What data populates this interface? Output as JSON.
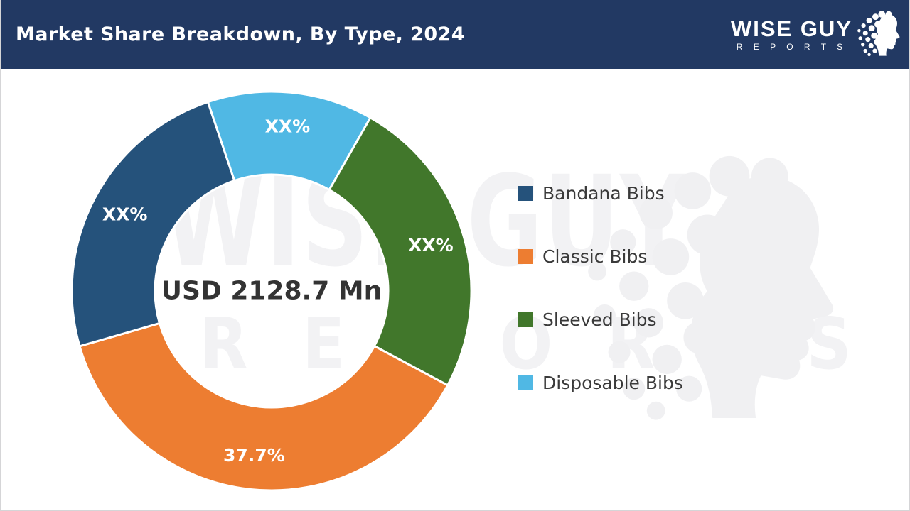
{
  "header": {
    "title": "Market Share Breakdown, By Type, 2024",
    "logo": {
      "line1": "WISE GUY",
      "line2": "R E P O R T S"
    }
  },
  "watermark": {
    "line1": "WISE GUY",
    "line2": "R E P O R T S"
  },
  "colors": {
    "header_bg": "#223963",
    "legend_text": "#3a3a3a",
    "center_text": "#333333",
    "watermark": "#f2f2f4"
  },
  "chart_data": {
    "type": "donut",
    "title": "Market Share Breakdown, By Type, 2024",
    "center_label": "USD 2128.7 Mn",
    "legend_position": "right",
    "start_angle_deg": -18.6,
    "segments": [
      {
        "label": "Bandana Bibs",
        "display_value": "XX%",
        "percent_est": 24.3,
        "color": "#25527B"
      },
      {
        "label": "Classic Bibs",
        "display_value": "37.7%",
        "percent_est": 37.7,
        "color": "#ED7D31"
      },
      {
        "label": "Sleeved Bibs",
        "display_value": "XX%",
        "percent_est": 24.6,
        "color": "#41772B"
      },
      {
        "label": "Disposable Bibs",
        "display_value": "XX%",
        "percent_est": 13.4,
        "color": "#50B8E4"
      }
    ]
  }
}
